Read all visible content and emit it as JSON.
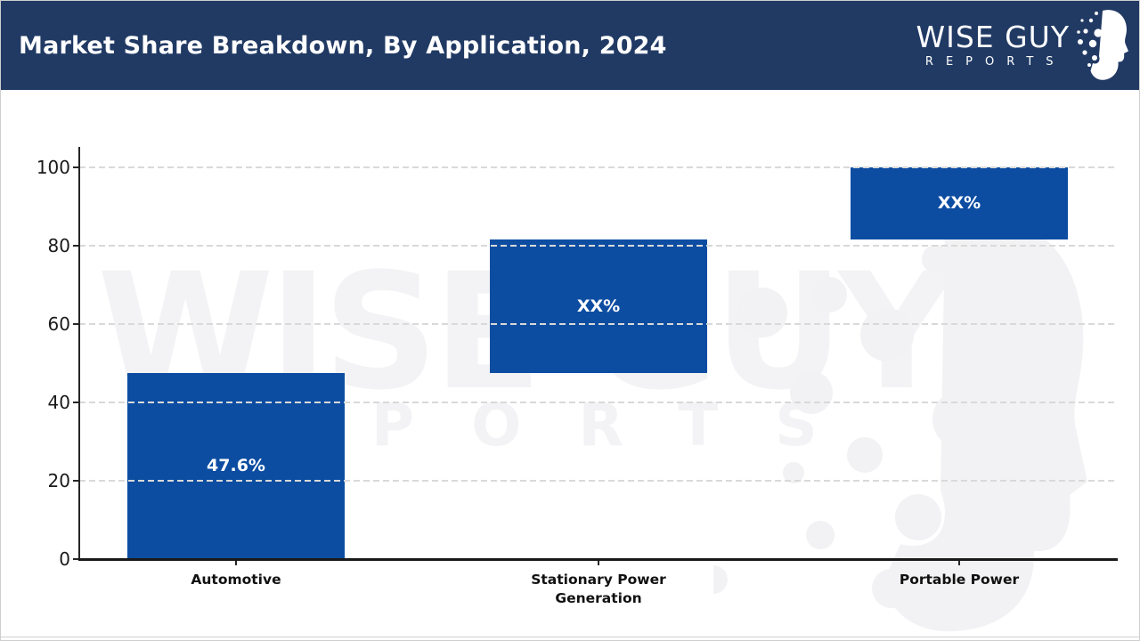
{
  "header": {
    "title": "Market Share Breakdown, By Application, 2024",
    "logo": {
      "line1": "WISE GUY",
      "line2": "REPORTS"
    }
  },
  "watermark": {
    "line1": "WISE GUY",
    "line2": "REPORTS"
  },
  "chart_data": {
    "type": "bar",
    "subtype": "floating-segment-waterfall",
    "title": "Market Share Breakdown, By Application, 2024",
    "categories": [
      "Automotive",
      "Stationary Power\nGeneration",
      "Portable Power"
    ],
    "segments": [
      {
        "category": "Automotive",
        "start": 0,
        "end": 47.6,
        "label": "47.6%"
      },
      {
        "category": "Stationary Power Generation",
        "start": 47.6,
        "end": 81.6,
        "label": "XX%"
      },
      {
        "category": "Portable Power",
        "start": 81.6,
        "end": 100,
        "label": "XX%"
      }
    ],
    "yticks": [
      0,
      20,
      40,
      60,
      80,
      100
    ],
    "ylim": [
      0,
      105
    ],
    "xlabel": "",
    "ylabel": "",
    "grid": {
      "horizontal": true,
      "style": "dashed"
    },
    "legend": "none",
    "colors": {
      "header_bg": "#213a64",
      "bar": "#0c4da2",
      "bar_label": "#ffffff",
      "grid": "#d9d9d9",
      "axis": "#1a1a1a",
      "tick_label": "#1a1a1a",
      "watermark": "#f3f3f5"
    }
  }
}
